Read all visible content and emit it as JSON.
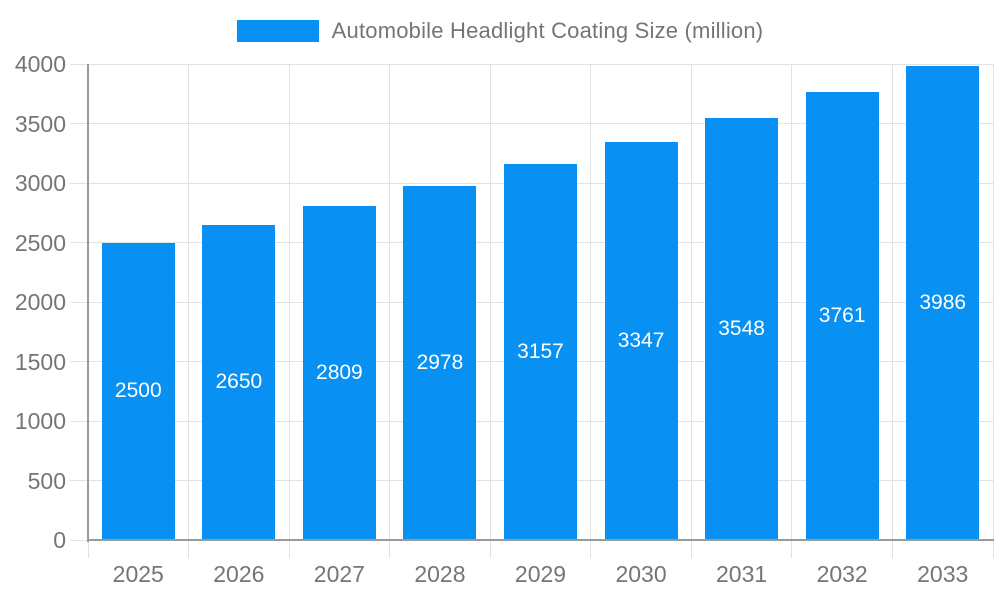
{
  "legend": {
    "label": "Automobile Headlight Coating Size (million)"
  },
  "chart_data": {
    "type": "bar",
    "title": "Automobile Headlight Coating Size (million)",
    "series": [
      {
        "name": "Automobile Headlight Coating Size (million)",
        "values": [
          2500,
          2650,
          2809,
          2978,
          3157,
          3347,
          3548,
          3761,
          3986
        ]
      }
    ],
    "categories": [
      "2025",
      "2026",
      "2027",
      "2028",
      "2029",
      "2030",
      "2031",
      "2032",
      "2033"
    ],
    "value_labels": [
      "2500",
      "2650",
      "2809",
      "2978",
      "3157",
      "3347",
      "3548",
      "3761",
      "3986"
    ],
    "xlabel": "",
    "ylabel": "",
    "ylim": [
      0,
      4000
    ],
    "ytick_interval": 500,
    "yticks": [
      "0",
      "500",
      "1000",
      "1500",
      "2000",
      "2500",
      "3000",
      "3500",
      "4000"
    ],
    "grid": true,
    "legend_position": "top",
    "value_label_position": "inside-center",
    "colors": {
      "bar": "#0890f2",
      "value_label_text": "#ffffff",
      "axis_text": "#757575",
      "gridline": "#e2e2e2",
      "axis_line": "#9a9a9a",
      "background": "#ffffff"
    }
  }
}
